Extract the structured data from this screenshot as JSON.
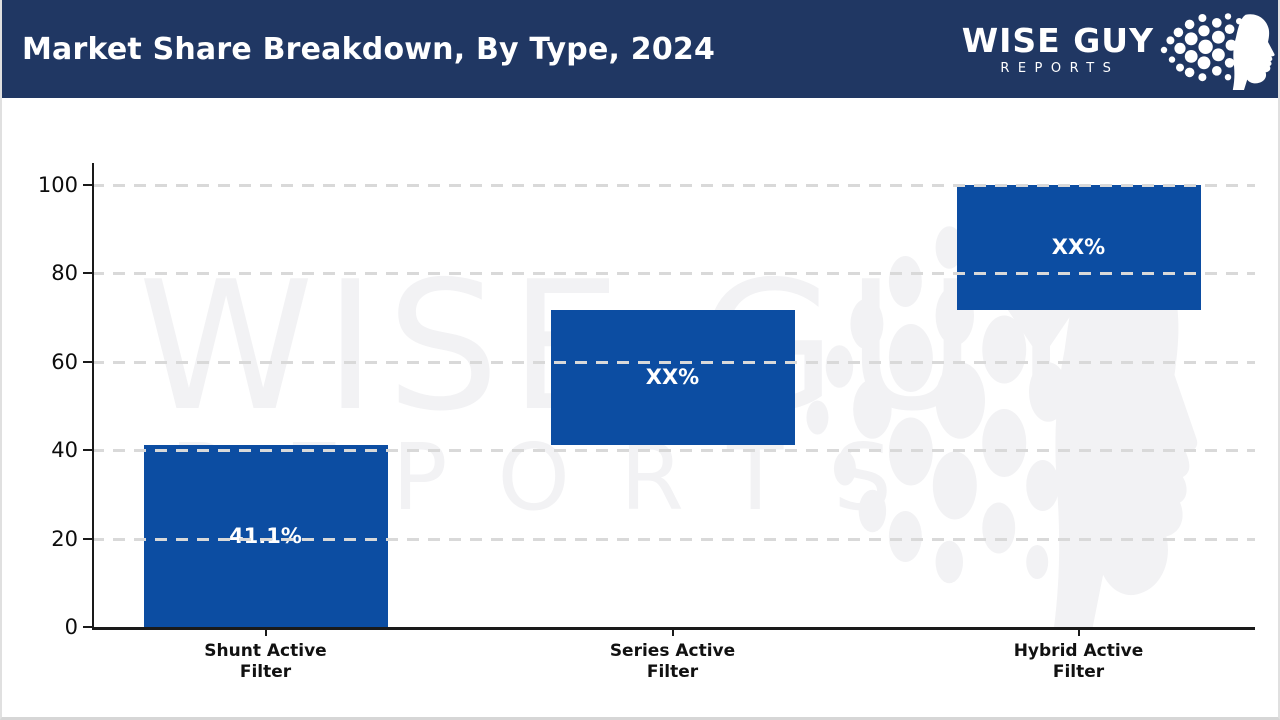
{
  "header": {
    "title": "Market Share Breakdown, By Type, 2024",
    "bg_color": "#203763",
    "logo": {
      "name": "WISE GUY",
      "subtitle": "REPORTS"
    }
  },
  "watermark": {
    "line1": "WISE GUY",
    "line2": "REPORTS"
  },
  "theme": {
    "header_bg": "#203763",
    "bar_color": "#0C4DA2",
    "watermark_color": "#f2f2f4",
    "grid_color": "#d9d9d9",
    "axis_color": "#1a1a1a"
  },
  "chart_data": {
    "type": "bar",
    "variant": "waterfall",
    "title": "Market Share Breakdown, By Type, 2024",
    "categories": [
      "Shunt Active Filter",
      "Series Active Filter",
      "Hybrid Active Filter"
    ],
    "segments": [
      {
        "category": "Shunt Active Filter",
        "start": 0,
        "end": 41.1,
        "label": "41.1%"
      },
      {
        "category": "Series Active Filter",
        "start": 41.1,
        "end": 71.8,
        "label": "XX%"
      },
      {
        "category": "Hybrid Active Filter",
        "start": 71.8,
        "end": 100,
        "label": "XX%"
      }
    ],
    "ylim": [
      0,
      100
    ],
    "yticks": [
      0,
      20,
      40,
      60,
      80,
      100
    ],
    "grid": {
      "axis": "y",
      "style": "dashed",
      "above_bars": true
    },
    "bar_color": "#0C4DA2",
    "bar_label_color": "#ffffff",
    "legend": "none"
  }
}
